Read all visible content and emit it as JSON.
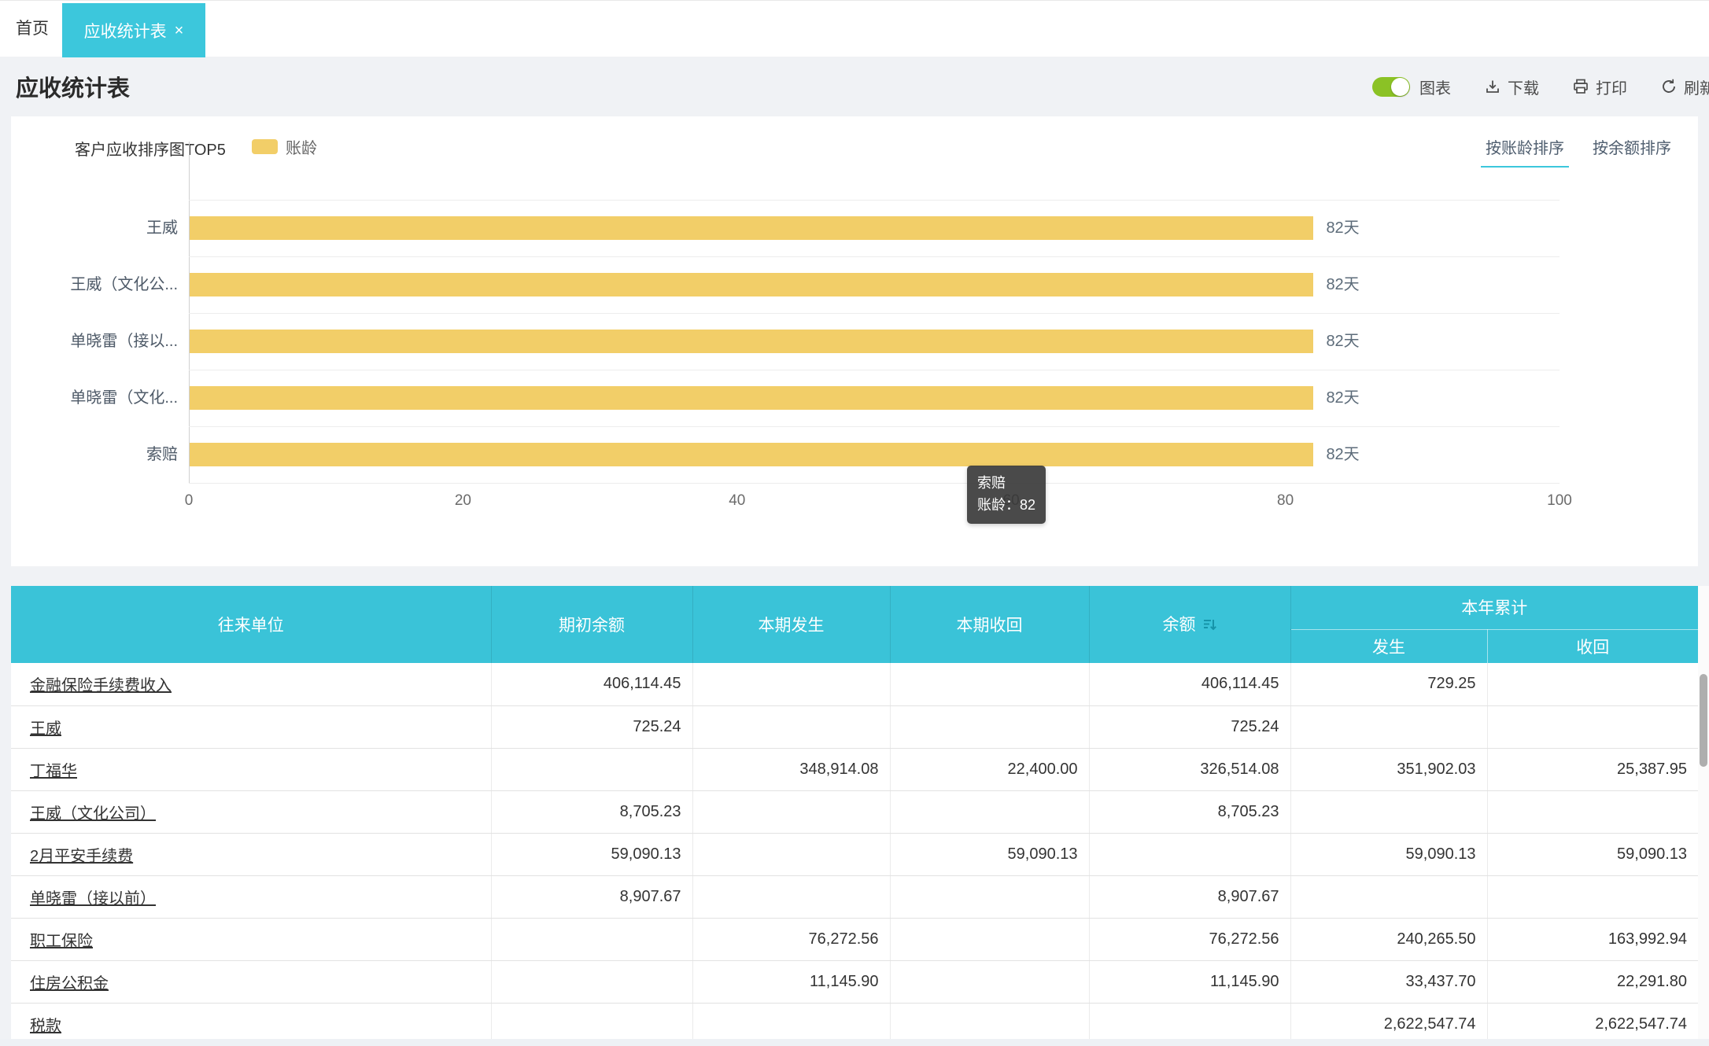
{
  "tabs": {
    "home": "首页",
    "active": "应收统计表",
    "close": "×"
  },
  "header": {
    "title": "应收统计表",
    "toolbar": {
      "chart_toggle_label": "图表",
      "download": "下载",
      "print": "打印",
      "refresh": "刷新"
    }
  },
  "chart": {
    "title": "客户应收排序图TOP5",
    "legend_label": "账龄",
    "sort_by_age": "按账龄排序",
    "sort_by_balance": "按余额排序",
    "tooltip": {
      "title": "索赔",
      "text": "账龄：82"
    }
  },
  "chart_data": {
    "type": "bar",
    "orientation": "horizontal",
    "title": "客户应收排序图TOP5",
    "legend": [
      "账龄"
    ],
    "categories": [
      "王威",
      "王威（文化公...",
      "单晓雷（接以...",
      "单晓雷（文化...",
      "索赔"
    ],
    "values": [
      82,
      82,
      82,
      82,
      82
    ],
    "value_labels": [
      "82天",
      "82天",
      "82天",
      "82天",
      "82天"
    ],
    "xlim": [
      0,
      100
    ],
    "x_ticks": [
      "0",
      "20",
      "40",
      "60",
      "80",
      "100"
    ],
    "grid": "band-split-lines",
    "legend_position": "top-left",
    "bar_color": "#f2ce68"
  },
  "table": {
    "columns": [
      "往来单位",
      "期初余额",
      "本期发生",
      "本期收回",
      "余额"
    ],
    "group_header": "本年累计",
    "group_columns": [
      "发生",
      "收回"
    ],
    "rows": [
      [
        "金融保险手续费收入",
        "406,114.45",
        "",
        "",
        "406,114.45",
        "729.25",
        ""
      ],
      [
        "王威",
        "725.24",
        "",
        "",
        "725.24",
        "",
        ""
      ],
      [
        "丁福华",
        "",
        "348,914.08",
        "22,400.00",
        "326,514.08",
        "351,902.03",
        "25,387.95"
      ],
      [
        "王威（文化公司）",
        "8,705.23",
        "",
        "",
        "8,705.23",
        "",
        ""
      ],
      [
        "2月平安手续费",
        "59,090.13",
        "",
        "59,090.13",
        "",
        "59,090.13",
        "59,090.13"
      ],
      [
        "单晓雷（接以前）",
        "8,907.67",
        "",
        "",
        "8,907.67",
        "",
        ""
      ],
      [
        "职工保险",
        "",
        "76,272.56",
        "",
        "76,272.56",
        "240,265.50",
        "163,992.94"
      ],
      [
        "住房公积金",
        "",
        "11,145.90",
        "",
        "11,145.90",
        "33,437.70",
        "22,291.80"
      ],
      [
        "税款",
        "",
        "",
        "",
        "",
        "2,622,547.74",
        "2,622,547.74"
      ]
    ]
  },
  "colors": {
    "accent": "#3cc7dc",
    "table_header": "#3ac3d8",
    "bar": "#f2ce68",
    "toggle": "#8bc225"
  }
}
